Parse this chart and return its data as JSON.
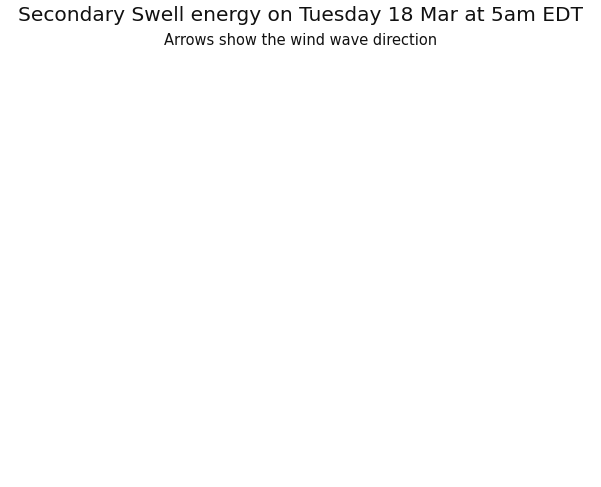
{
  "title": "Secondary Swell energy on Tuesday 18 Mar at 5am EDT",
  "subtitle": "Arrows show the wind wave direction",
  "title_fontsize": 14.5,
  "subtitle_fontsize": 10.5,
  "title_color": "#111111",
  "background_color": "#ffffff",
  "header_bg": "#ffffff",
  "fig_width": 6.01,
  "fig_height": 4.87,
  "dpi": 100,
  "map_extent": [
    -145,
    -40,
    38,
    85
  ],
  "central_longitude": -96,
  "central_latitude": 60,
  "standard_parallels": [
    49,
    77
  ],
  "ocean_color": "#000000",
  "land_color": "#909090",
  "land_edge_color": "#444444",
  "lake_color": "#000000",
  "border_color": "#333333",
  "state_border_color": "#444444",
  "pacific_blue_polygons": [
    {
      "lons": [
        -137,
        -133,
        -130,
        -127,
        -124,
        -122,
        -123,
        -126,
        -129,
        -132,
        -135,
        -137
      ],
      "lats": [
        43,
        41,
        40,
        41,
        43,
        47,
        50,
        52,
        53,
        53,
        51,
        43
      ],
      "color": "#0000cc",
      "alpha": 0.9
    },
    {
      "lons": [
        -137,
        -133,
        -130,
        -128,
        -131,
        -134,
        -137
      ],
      "lats": [
        49,
        49,
        51,
        55,
        57,
        55,
        49
      ],
      "color": "#0000aa",
      "alpha": 0.55
    }
  ],
  "pacific_cyan_lons": [
    -143,
    -141,
    -139,
    -143,
    -141,
    -139,
    -143,
    -141
  ],
  "pacific_cyan_lats": [
    57,
    55,
    53,
    51,
    49,
    47,
    45,
    43
  ],
  "atlantic_cyan_lons": [
    -63,
    -58,
    -53,
    -66,
    -61,
    -56,
    -51,
    -68,
    -64,
    -59,
    -54,
    -49,
    -70,
    -66
  ],
  "atlantic_cyan_lats": [
    42,
    43,
    44,
    44,
    45,
    46,
    47,
    46,
    48,
    49,
    50,
    51,
    44,
    42
  ],
  "cyan_color": "#00ffff",
  "cyan_size": 6
}
